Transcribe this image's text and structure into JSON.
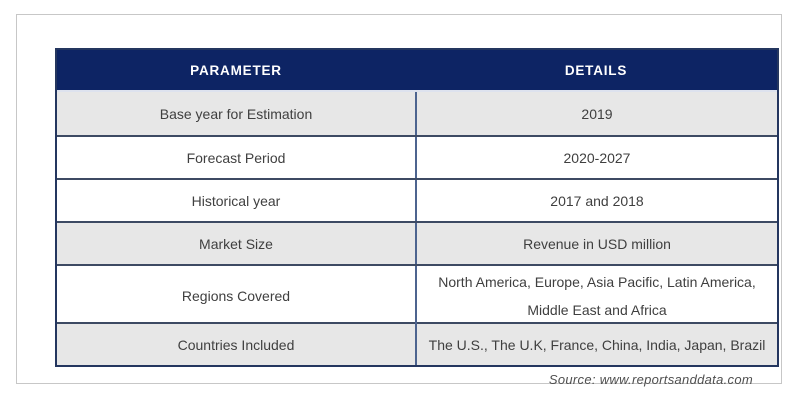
{
  "table": {
    "headers": {
      "parameter": "PARAMETER",
      "details": "DETAILS"
    },
    "rows": [
      {
        "parameter": "Base year for Estimation",
        "details": "2019"
      },
      {
        "parameter": "Forecast Period",
        "details": "2020-2027"
      },
      {
        "parameter": "Historical year",
        "details": "2017 and 2018"
      },
      {
        "parameter": "Market Size",
        "details": "Revenue in USD million"
      },
      {
        "parameter": "Regions Covered",
        "details": "North America, Europe, Asia Pacific, Latin America,\nMiddle East and Africa"
      },
      {
        "parameter": "Countries Included",
        "details": "The U.S., The U.K, France, China, India, Japan, Brazil"
      }
    ]
  },
  "source": {
    "text": "Source: www.reportsanddata.com"
  },
  "colors": {
    "header_bg": "#0d2464",
    "header_text": "#ffffff",
    "row_shaded": "#e7e7e7",
    "row_white": "#ffffff",
    "cell_text": "#3f3f3f",
    "grid_border": "#3d4a63",
    "column_divider": "#4d648f",
    "table_border": "#24365f",
    "frame_border": "#c7c7c7",
    "source_text": "#4f4f4f"
  }
}
